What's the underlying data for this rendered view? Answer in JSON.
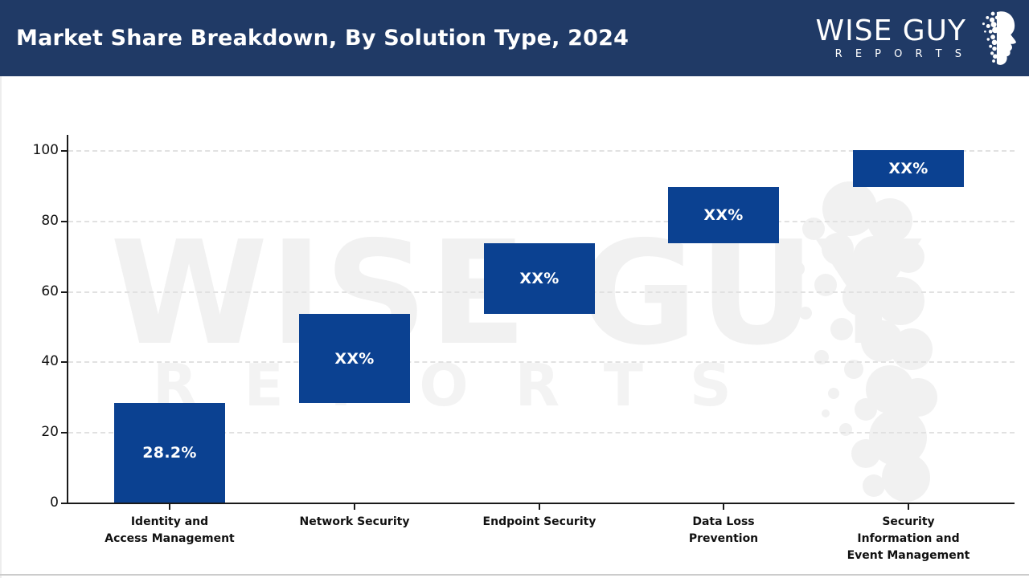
{
  "header": {
    "title": "Market Share Breakdown, By Solution Type, 2024",
    "logo": {
      "name_line": "WISE GUY",
      "reports_line": "R E P O R T S"
    }
  },
  "watermark": {
    "name_line": "WISE GUY",
    "reports_line": "REPORTS"
  },
  "chart_data": {
    "type": "bar",
    "variant": "waterfall",
    "title": "Market Share Breakdown, By Solution Type, 2024",
    "categories": [
      {
        "name": "Identity and Access Management",
        "lines": [
          "Identity and",
          "Access Management"
        ]
      },
      {
        "name": "Network Security",
        "lines": [
          "Network Security"
        ]
      },
      {
        "name": "Endpoint Security",
        "lines": [
          "Endpoint Security"
        ]
      },
      {
        "name": "Data Loss Prevention",
        "lines": [
          "Data Loss",
          "Prevention"
        ]
      },
      {
        "name": "Security Information and Event Management",
        "lines": [
          "Security",
          "Information and",
          "Event Management"
        ]
      }
    ],
    "segments": [
      {
        "start": 0,
        "end": 28.2,
        "label": "28.2%"
      },
      {
        "start": 28.2,
        "end": 53.5,
        "label": "XX%"
      },
      {
        "start": 53.5,
        "end": 73.5,
        "label": "XX%"
      },
      {
        "start": 73.5,
        "end": 89.5,
        "label": "XX%"
      },
      {
        "start": 89.5,
        "end": 100,
        "label": "XX%"
      }
    ],
    "xlabel": "",
    "ylabel": "",
    "ylim": [
      0,
      100
    ],
    "yticks": [
      0,
      20,
      40,
      60,
      80,
      100
    ],
    "grid": "horizontal-dashed",
    "legend": "none",
    "bar_color": "#0b4191",
    "bar_label_color": "#ffffff"
  },
  "colors": {
    "header_bg": "#203a66",
    "bar": "#0b4191",
    "axis": "#1a1a1a",
    "gridline": "#e1e1e1",
    "watermark": "#f1f1f1"
  }
}
